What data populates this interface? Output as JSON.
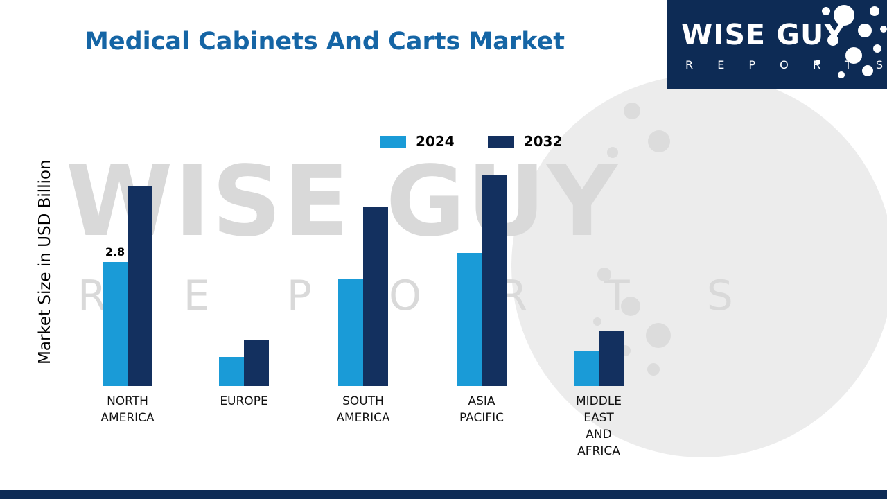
{
  "page": {
    "title": "Medical Cabinets And Carts Market",
    "title_color": "#1565a5",
    "background_color": "#ffffff",
    "footer_color": "#0d2b55"
  },
  "watermark": {
    "line1": "WISE GUY",
    "line2": "R E P O R T S",
    "color": "#d9d9d9"
  },
  "logo": {
    "line1": "WISE GUY",
    "line2": "R E P O R T S",
    "bg_color": "#0d2b55",
    "text_color": "#ffffff"
  },
  "chart_data": {
    "type": "bar",
    "title": "Medical Cabinets And Carts Market",
    "xlabel": "",
    "ylabel": "Market Size in USD Billion",
    "y_unit": "USD Billion",
    "ylim": [
      0,
      5
    ],
    "grid": false,
    "legend_position": "top",
    "categories": [
      "NORTH AMERICA",
      "EUROPE",
      "SOUTH AMERICA",
      "ASIA PACIFIC",
      "MIDDLE EAST AND AFRICA"
    ],
    "categories_display": [
      "NORTH\nAMERICA",
      "EUROPE",
      "SOUTH\nAMERICA",
      "ASIA\nPACIFIC",
      "MIDDLE\nEAST\nAND\nAFRICA"
    ],
    "series": [
      {
        "name": "2024",
        "color": "#1a9bd7",
        "values": [
          2.8,
          0.65,
          2.4,
          3.0,
          0.78
        ]
      },
      {
        "name": "2032",
        "color": "#13305f",
        "values": [
          4.5,
          1.05,
          4.05,
          4.75,
          1.25
        ]
      }
    ],
    "data_labels": [
      {
        "series_index": 0,
        "category_index": 0,
        "text": "2.8"
      }
    ]
  }
}
